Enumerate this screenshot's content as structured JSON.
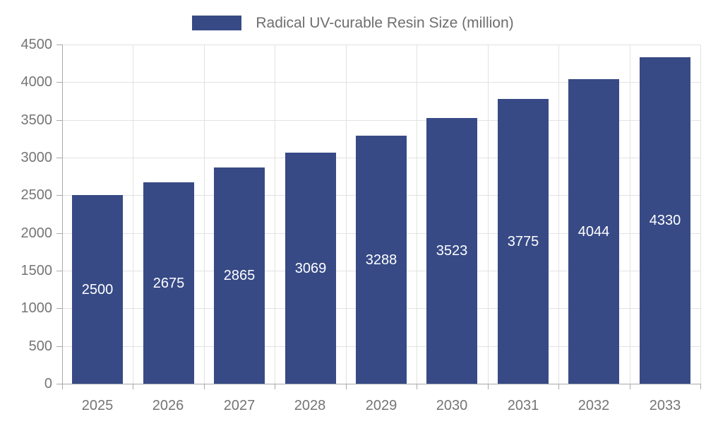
{
  "legend": {
    "label": "Radical UV-curable Resin Size (million)"
  },
  "colors": {
    "bar": "#374a86",
    "bar_label": "#ffffff",
    "legend_text": "#6e6e6e",
    "tick_label": "#757575",
    "axis_line": "#aaaaaa",
    "gridline": "#e2e2e2",
    "background": "#ffffff"
  },
  "chart_data": {
    "type": "bar",
    "title": "Radical UV-curable Resin Size (million)",
    "categories": [
      "2025",
      "2026",
      "2027",
      "2028",
      "2029",
      "2030",
      "2031",
      "2032",
      "2033"
    ],
    "values": [
      2500,
      2675,
      2865,
      3069,
      3288,
      3523,
      3775,
      4044,
      4330
    ],
    "series_name": "Radical UV-curable Resin Size (million)",
    "xlabel": "",
    "ylabel": "",
    "ylim": [
      0,
      4500
    ],
    "ytick_step": 500,
    "yticks": [
      0,
      500,
      1000,
      1500,
      2000,
      2500,
      3000,
      3500,
      4000,
      4500
    ],
    "grid": true,
    "legend_position": "top-center",
    "bar_label_position": "inside-center"
  }
}
